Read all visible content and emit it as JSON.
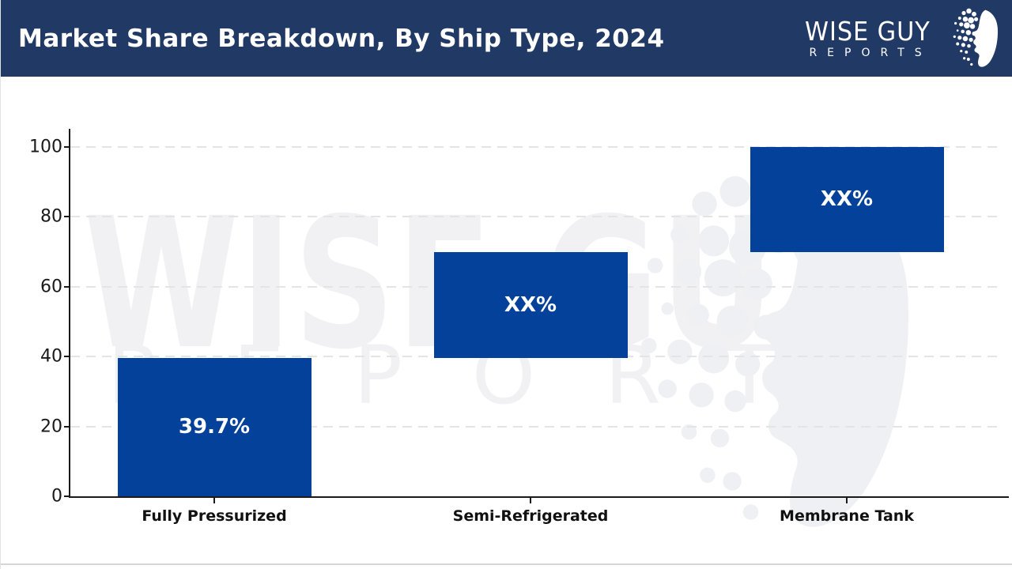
{
  "header": {
    "title": "Market Share Breakdown, By Ship Type, 2024",
    "background_color": "#213965",
    "logo": {
      "line1": "WISE GUY",
      "line2": "REPORTS"
    }
  },
  "watermark": {
    "line1": "WISE GUY",
    "line2": "REPORTS"
  },
  "chart_data": {
    "type": "bar",
    "variant": "floating-segment-waterfall",
    "title": "Market Share Breakdown, By Ship Type, 2024",
    "categories": [
      "Fully Pressurized",
      "Semi-Refrigerated",
      "Membrane Tank"
    ],
    "segments": [
      {
        "category": "Fully Pressurized",
        "from": 0,
        "to": 39.7,
        "label": "39.7%"
      },
      {
        "category": "Semi-Refrigerated",
        "from": 39.7,
        "to": 70,
        "label": "XX%"
      },
      {
        "category": "Membrane Tank",
        "from": 70,
        "to": 100,
        "label": "XX%"
      }
    ],
    "ylim": [
      0,
      100
    ],
    "yticks": [
      0,
      20,
      40,
      60,
      80,
      100
    ],
    "grid": {
      "horizontal": true,
      "style": "dashed",
      "color": "#e4e4e4"
    },
    "legend": null,
    "bar_color": "#04419b",
    "bar_label_color": "#ffffff",
    "axis_color": "#1a1a1a"
  }
}
